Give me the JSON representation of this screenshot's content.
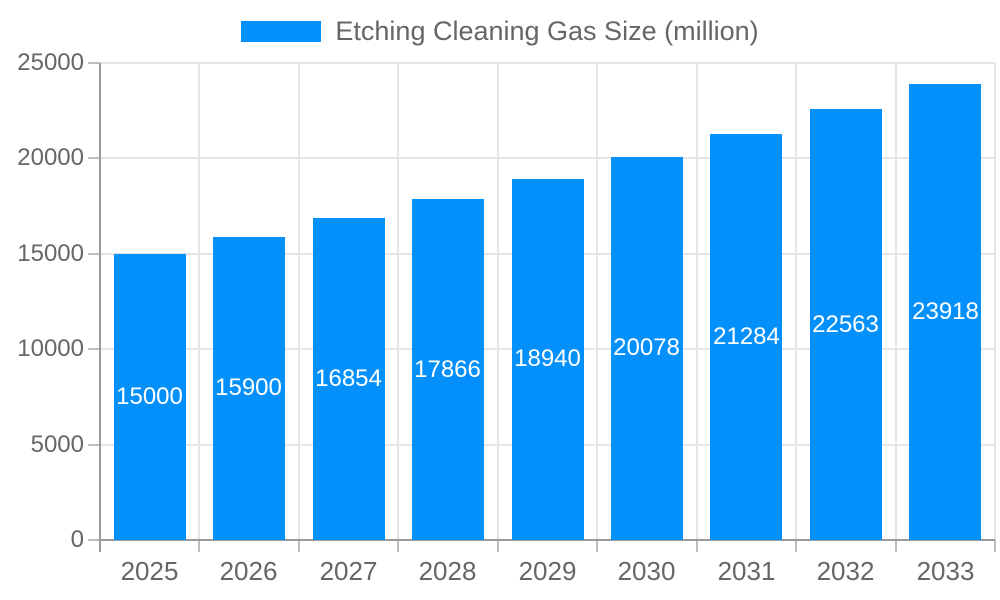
{
  "chart_data": {
    "type": "bar",
    "title": "",
    "legend": {
      "label": "Etching Cleaning Gas Size (million)",
      "position": "top"
    },
    "categories": [
      "2025",
      "2026",
      "2027",
      "2028",
      "2029",
      "2030",
      "2031",
      "2032",
      "2033"
    ],
    "values": [
      15000,
      15900,
      16854,
      17866,
      18940,
      20078,
      21284,
      22563,
      23918
    ],
    "value_labels": [
      "15000",
      "15900",
      "16854",
      "17866",
      "18940",
      "20078",
      "21284",
      "22563",
      "23918"
    ],
    "xlabel": "",
    "ylabel": "",
    "ylim": [
      0,
      25000
    ],
    "yticks": [
      0,
      5000,
      10000,
      15000,
      20000,
      25000
    ],
    "ytick_labels": [
      "0",
      "5000",
      "10000",
      "15000",
      "20000",
      "25000"
    ],
    "grid": true,
    "value_label_position": "center-of-bar",
    "colors": {
      "bar": "#0490FA",
      "value_label": "#FFFFFF",
      "axis_text": "#666666",
      "grid_line": "#E5E5E5",
      "axis_line": "#9B9B9B",
      "tick_mark": "#BDBDBD",
      "background": "#FFFFFF"
    }
  }
}
